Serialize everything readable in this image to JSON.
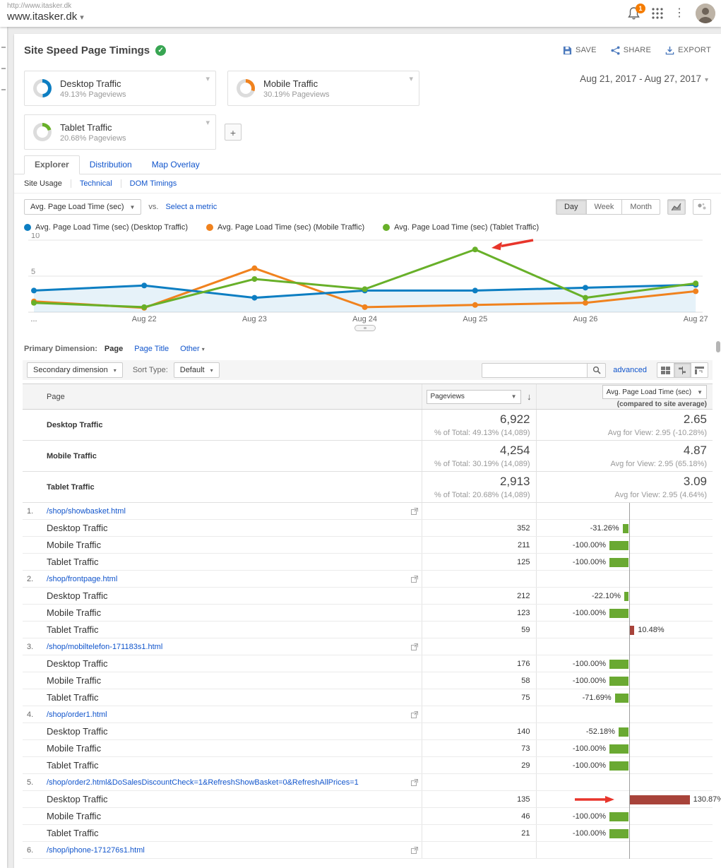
{
  "theme": {
    "link": "#1155cc",
    "badge_orange": "#f57c00",
    "check_green": "#38a552",
    "bar_negative": "#6aa932",
    "bar_positive": "#a8433a"
  },
  "topbar": {
    "url": "http://www.itasker.dk",
    "account": "www.itasker.dk",
    "notification_count": "1"
  },
  "header": {
    "title": "Site Speed Page Timings",
    "save": "SAVE",
    "share": "SHARE",
    "export": "EXPORT"
  },
  "segments": {
    "cards": [
      {
        "name": "Desktop Traffic",
        "sub": "49.13% Pageviews",
        "color": "#0d7ec2",
        "pct": 49.13
      },
      {
        "name": "Mobile Traffic",
        "sub": "30.19% Pageviews",
        "color": "#f0821e",
        "pct": 30.19
      },
      {
        "name": "Tablet Traffic",
        "sub": "20.68% Pageviews",
        "color": "#68b029",
        "pct": 20.68
      }
    ],
    "add_label": "+"
  },
  "date_range": "Aug 21, 2017 - Aug 27, 2017",
  "tabs": [
    {
      "label": "Explorer",
      "active": true
    },
    {
      "label": "Distribution",
      "active": false
    },
    {
      "label": "Map Overlay",
      "active": false
    }
  ],
  "subtabs": [
    {
      "label": "Site Usage",
      "active": true
    },
    {
      "label": "Technical",
      "active": false
    },
    {
      "label": "DOM Timings",
      "active": false
    }
  ],
  "metric_bar": {
    "metric": "Avg. Page Load Time (sec)",
    "vs": "vs.",
    "select_metric": "Select a metric",
    "granularity": [
      {
        "label": "Day",
        "active": true
      },
      {
        "label": "Week",
        "active": false
      },
      {
        "label": "Month",
        "active": false
      }
    ]
  },
  "chart_data": {
    "type": "line",
    "x": [
      "...",
      "Aug 22",
      "Aug 23",
      "Aug 24",
      "Aug 25",
      "Aug 26",
      "Aug 27"
    ],
    "series": [
      {
        "name": "Avg. Page Load Time (sec) (Desktop Traffic)",
        "color": "#0d7ec2",
        "area": true,
        "values": [
          3.0,
          3.7,
          2.0,
          3.0,
          3.0,
          3.4,
          3.8
        ]
      },
      {
        "name": "Avg. Page Load Time (sec) (Mobile Traffic)",
        "color": "#f0821e",
        "area": false,
        "values": [
          1.5,
          0.6,
          6.1,
          0.7,
          1.0,
          1.3,
          2.9
        ]
      },
      {
        "name": "Avg. Page Load Time (sec) (Tablet Traffic)",
        "color": "#68b029",
        "area": false,
        "values": [
          1.3,
          0.7,
          4.6,
          3.2,
          8.7,
          2.0,
          4.0
        ]
      }
    ],
    "ylim": [
      0,
      10
    ],
    "yticks": [
      5,
      10
    ],
    "grid": true,
    "legend_position": "top",
    "annotations": [
      {
        "type": "red-arrow",
        "target": "tablet-peak-aug-25"
      }
    ]
  },
  "primary_dimension": {
    "label": "Primary Dimension:",
    "options": [
      {
        "label": "Page",
        "active": true
      },
      {
        "label": "Page Title",
        "active": false
      },
      {
        "label": "Other",
        "active": false
      }
    ]
  },
  "toolbar": {
    "secondary_dimension": "Secondary dimension",
    "sort_type_label": "Sort Type:",
    "sort_type_value": "Default",
    "search_value": "",
    "advanced": "advanced"
  },
  "table": {
    "columns": {
      "page": "Page",
      "pageviews": "Pageviews",
      "avg": "Avg. Page Load Time (sec)",
      "avg_sub": "(compared to site average)"
    },
    "summary": [
      {
        "name": "Desktop Traffic",
        "pageviews": "6,922",
        "pv_sub": "% of Total: 49.13% (14,089)",
        "avg": "2.65",
        "avg_sub": "Avg for View: 2.95 (-10.28%)"
      },
      {
        "name": "Mobile Traffic",
        "pageviews": "4,254",
        "pv_sub": "% of Total: 30.19% (14,089)",
        "avg": "4.87",
        "avg_sub": "Avg for View: 2.95 (65.18%)"
      },
      {
        "name": "Tablet Traffic",
        "pageviews": "2,913",
        "pv_sub": "% of Total: 20.68% (14,089)",
        "avg": "3.09",
        "avg_sub": "Avg for View: 2.95 (4.64%)"
      }
    ],
    "groups": [
      {
        "url": "/shop/showbasket.html",
        "rows": [
          {
            "segment": "Desktop Traffic",
            "pageviews": "352",
            "pct": -31.26,
            "pct_label": "-31.26%"
          },
          {
            "segment": "Mobile Traffic",
            "pageviews": "211",
            "pct": -100.0,
            "pct_label": "-100.00%"
          },
          {
            "segment": "Tablet Traffic",
            "pageviews": "125",
            "pct": -100.0,
            "pct_label": "-100.00%"
          }
        ]
      },
      {
        "url": "/shop/frontpage.html",
        "rows": [
          {
            "segment": "Desktop Traffic",
            "pageviews": "212",
            "pct": -22.1,
            "pct_label": "-22.10%"
          },
          {
            "segment": "Mobile Traffic",
            "pageviews": "123",
            "pct": -100.0,
            "pct_label": "-100.00%"
          },
          {
            "segment": "Tablet Traffic",
            "pageviews": "59",
            "pct": 10.48,
            "pct_label": "10.48%"
          }
        ]
      },
      {
        "url": "/shop/mobiltelefon-171183s1.html",
        "rows": [
          {
            "segment": "Desktop Traffic",
            "pageviews": "176",
            "pct": -100.0,
            "pct_label": "-100.00%"
          },
          {
            "segment": "Mobile Traffic",
            "pageviews": "58",
            "pct": -100.0,
            "pct_label": "-100.00%"
          },
          {
            "segment": "Tablet Traffic",
            "pageviews": "75",
            "pct": -71.69,
            "pct_label": "-71.69%"
          }
        ]
      },
      {
        "url": "/shop/order1.html",
        "rows": [
          {
            "segment": "Desktop Traffic",
            "pageviews": "140",
            "pct": -52.18,
            "pct_label": "-52.18%"
          },
          {
            "segment": "Mobile Traffic",
            "pageviews": "73",
            "pct": -100.0,
            "pct_label": "-100.00%"
          },
          {
            "segment": "Tablet Traffic",
            "pageviews": "29",
            "pct": -100.0,
            "pct_label": "-100.00%"
          }
        ]
      },
      {
        "url": "/shop/order2.html&DoSalesDiscountCheck=1&RefreshShowBasket=0&RefreshAllPrices=1",
        "rows": [
          {
            "segment": "Desktop Traffic",
            "pageviews": "135",
            "pct": 130.87,
            "pct_label": "130.87%",
            "arrow": true
          },
          {
            "segment": "Mobile Traffic",
            "pageviews": "46",
            "pct": -100.0,
            "pct_label": "-100.00%"
          },
          {
            "segment": "Tablet Traffic",
            "pageviews": "21",
            "pct": -100.0,
            "pct_label": "-100.00%"
          }
        ]
      },
      {
        "url": "/shop/iphone-171276s1.html",
        "rows": []
      }
    ]
  }
}
